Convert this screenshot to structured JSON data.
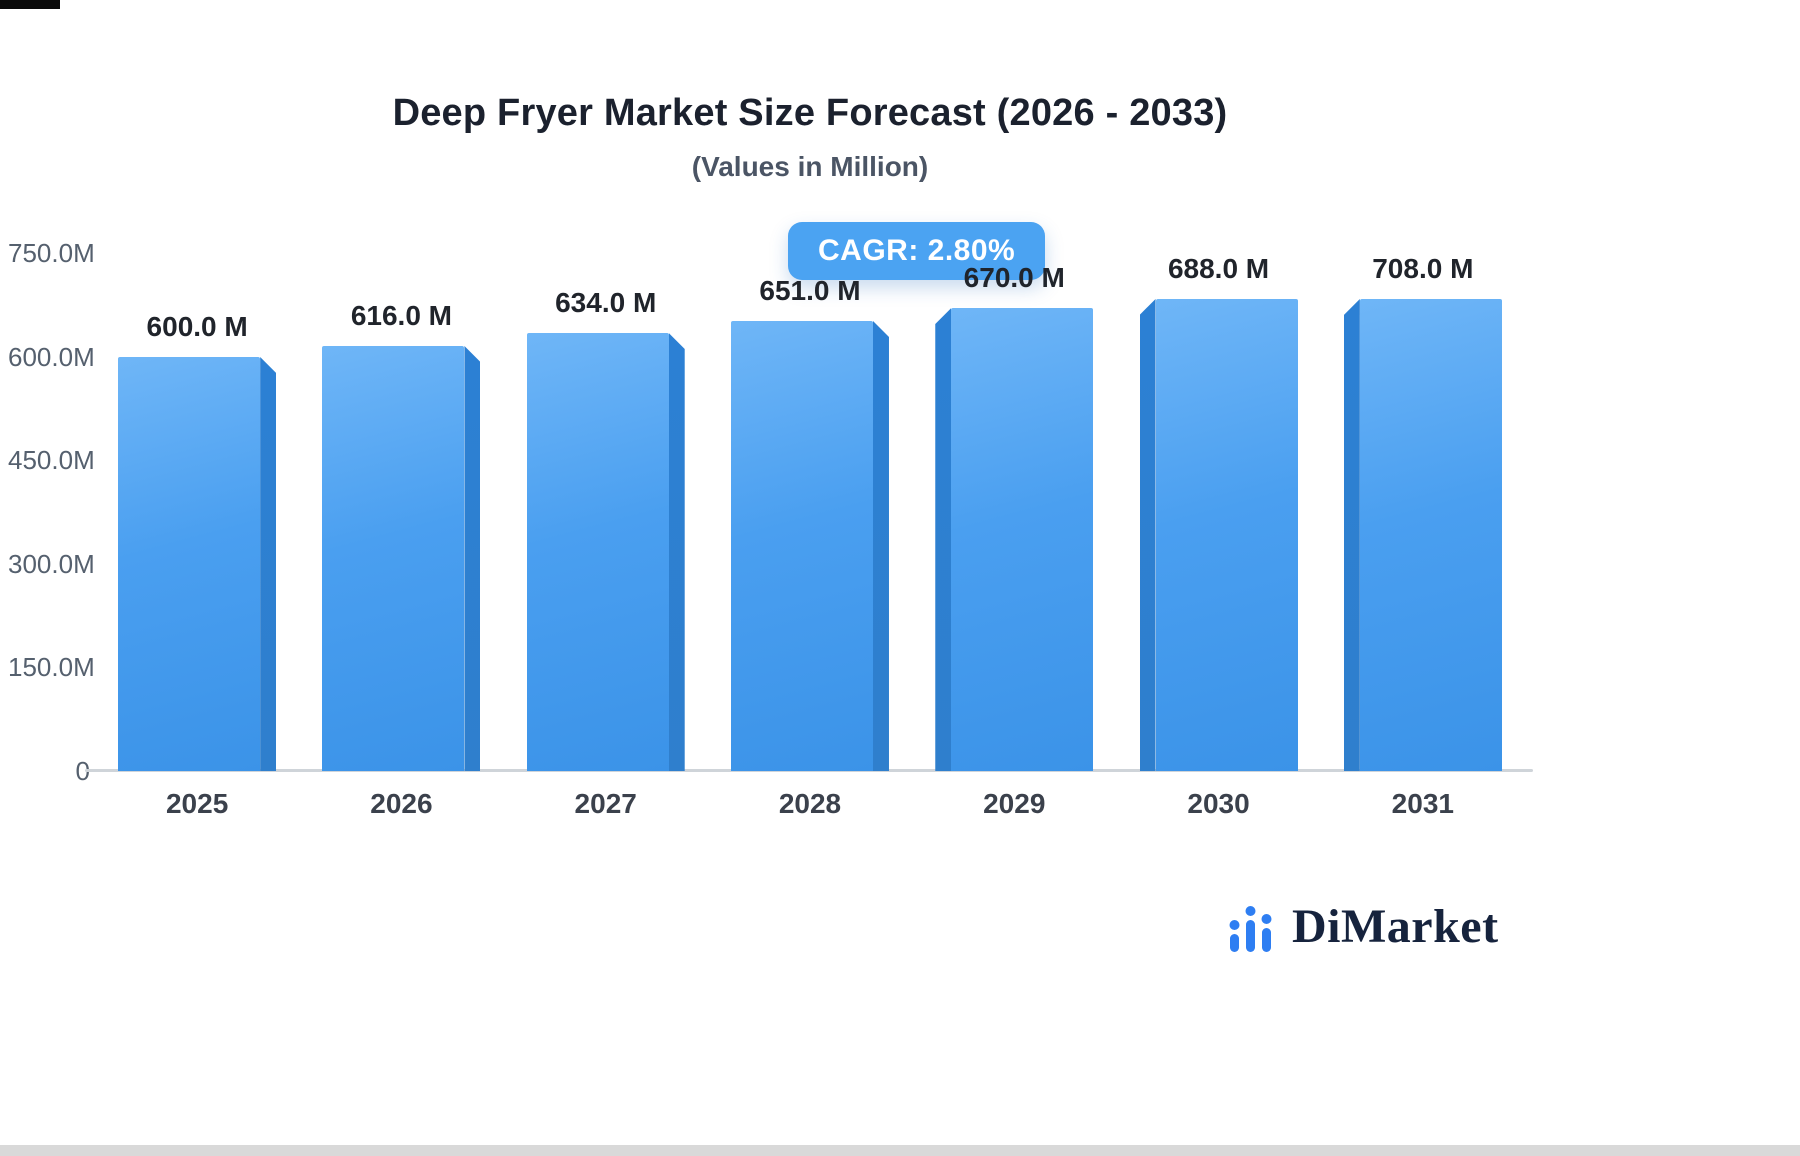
{
  "header": {
    "title": "Deep Fryer Market Size Forecast (2026 - 2033)",
    "subtitle": "(Values in Million)",
    "cagr_label": "CAGR: 2.80%"
  },
  "chart_data": {
    "type": "bar",
    "title": "Deep Fryer Market Size Forecast (2026 - 2033)",
    "subtitle": "(Values in Million)",
    "unit": "Million",
    "cagr": "2.80%",
    "categories": [
      "2025",
      "2026",
      "2027",
      "2028",
      "2029",
      "2030",
      "2031"
    ],
    "values": [
      600.0,
      616.0,
      634.0,
      651.0,
      670.0,
      688.0,
      708.0
    ],
    "value_labels": [
      "600.0 M",
      "616.0 M",
      "634.0 M",
      "651.0 M",
      "670.0 M",
      "688.0 M",
      "708.0 M"
    ],
    "ylim": [
      0,
      750
    ],
    "y_ticks": [
      {
        "label": "750.0M",
        "value": 750
      },
      {
        "label": "600.0M",
        "value": 600
      },
      {
        "label": "450.0M",
        "value": 450
      },
      {
        "label": "300.0M",
        "value": 300
      },
      {
        "label": "150.0M",
        "value": 150
      },
      {
        "label": "0",
        "value": 0
      }
    ],
    "grid": false,
    "legend": false,
    "bar_color": "#4399ec",
    "bar_side_color": "#2d7fd2",
    "badge_color": "#4ba3f2"
  },
  "footer": {
    "brand": "DiMarket"
  }
}
